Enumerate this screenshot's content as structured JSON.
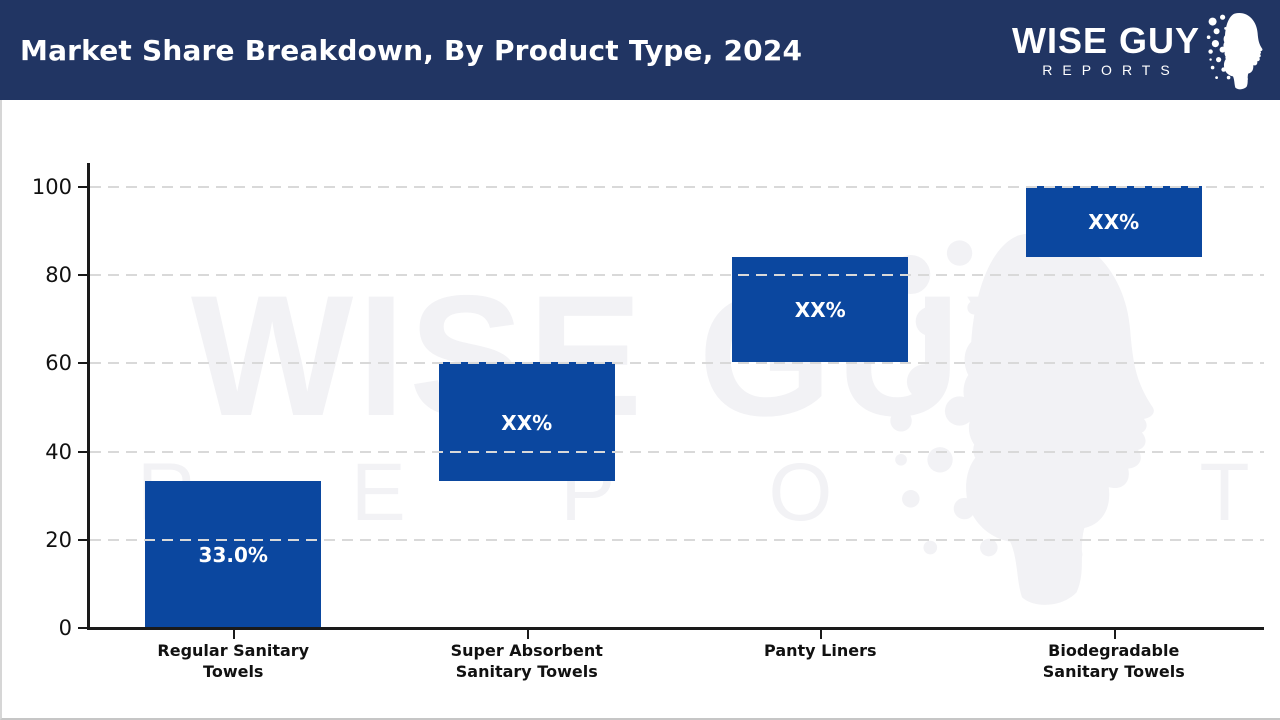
{
  "header": {
    "title": "Market Share Breakdown, By Product Type, 2024",
    "bg_color": "#213563",
    "brand": {
      "line1": "WISE GUY",
      "line2": "REPORTS"
    }
  },
  "watermark": {
    "line1": "WISE GUY",
    "line2": "R E P O R T S"
  },
  "chart_data": {
    "type": "bar",
    "subtype": "floating-segment-waterfall",
    "title": "Market Share Breakdown, By Product Type, 2024",
    "categories": [
      "Regular Sanitary\nTowels",
      "Super Absorbent\nSanitary Towels",
      "Panty Liners",
      "Biodegradable\nSanitary Towels"
    ],
    "segments": [
      {
        "start": 0,
        "end": 33,
        "label": "33.0%"
      },
      {
        "start": 33,
        "end": 60,
        "label": "XX%"
      },
      {
        "start": 60,
        "end": 84,
        "label": "XX%"
      },
      {
        "start": 84,
        "end": 100,
        "label": "XX%"
      }
    ],
    "ylim": [
      0,
      100
    ],
    "yticks": [
      0,
      20,
      40,
      60,
      80,
      100
    ],
    "grid": "dashed-horizontal",
    "legend": "none",
    "colors": {
      "bar": "#0b479f",
      "bar_label": "#ffffff",
      "gridline": "#d9d9d9",
      "axis": "#1a1a1a",
      "watermark": "#f2f2f5",
      "header_bg": "#213563"
    }
  }
}
